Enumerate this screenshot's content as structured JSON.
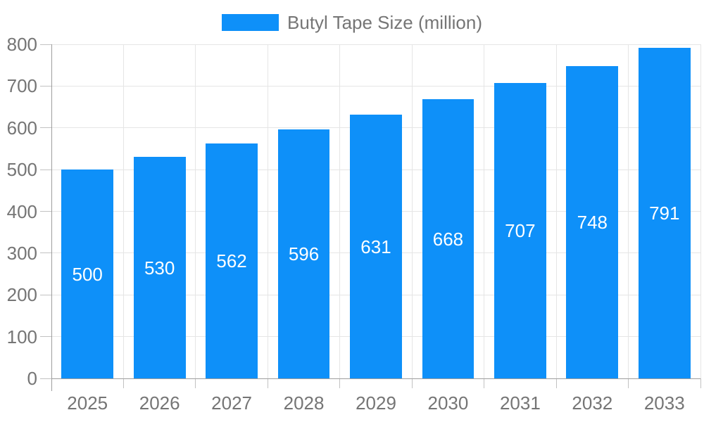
{
  "legend": {
    "label": "Butyl Tape Size (million)"
  },
  "chart_data": {
    "type": "bar",
    "title": "Butyl Tape Size (million)",
    "categories": [
      "2025",
      "2026",
      "2027",
      "2028",
      "2029",
      "2030",
      "2031",
      "2032",
      "2033"
    ],
    "values": [
      500,
      530,
      562,
      596,
      631,
      668,
      707,
      748,
      791
    ],
    "series": [
      {
        "name": "Butyl Tape Size (million)",
        "values": [
          500,
          530,
          562,
          596,
          631,
          668,
          707,
          748,
          791
        ]
      }
    ],
    "xlabel": "",
    "ylabel": "",
    "ylim": [
      0,
      800
    ],
    "yticks": [
      0,
      100,
      200,
      300,
      400,
      500,
      600,
      700,
      800
    ],
    "grid": true,
    "legend_position": "top-center",
    "data_labels_position": "inside-center"
  },
  "colors": {
    "bar": "#0e90f9",
    "bar_label": "#ffffff",
    "axis_text": "#757575",
    "axis_line": "#9e9e9e",
    "tick_line": "#c2c2c2",
    "grid_line": "#e5e5e5",
    "background": "#ffffff"
  }
}
